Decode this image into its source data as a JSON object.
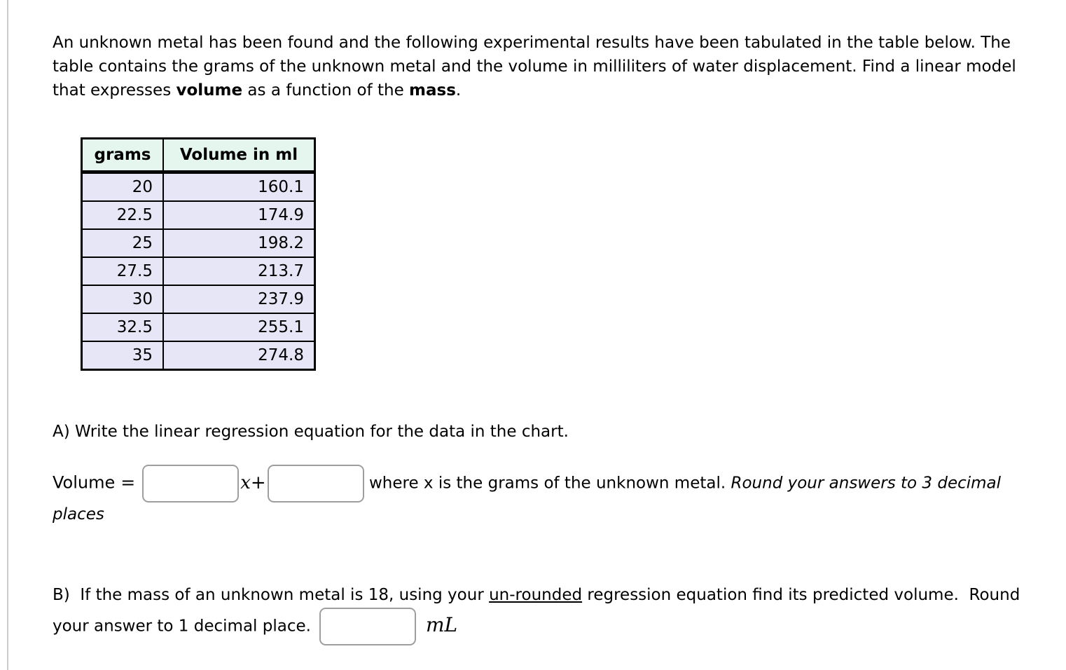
{
  "colors": {
    "table_header_bg": "#e5f6ef",
    "table_row_bg": "#e6e6f6",
    "table_border": "#000000",
    "answer_box_border": "#9e9e9e",
    "left_rule": "#cccccc",
    "text": "#000000"
  },
  "problem": {
    "intro": {
      "part1": "An unknown metal has been found and the following experimental results have been tabulated in the table below. The table contains the grams of the unknown metal and the volume in milliliters of water displacement. Find a linear model that expresses ",
      "bold1": "volume",
      "part2": " as a function of the ",
      "bold2": "mass",
      "part3": "."
    },
    "table": {
      "headers": [
        "grams",
        "Volume in ml"
      ],
      "rows": [
        [
          "20",
          "160.1"
        ],
        [
          "22.5",
          "174.9"
        ],
        [
          "25",
          "198.2"
        ],
        [
          "27.5",
          "213.7"
        ],
        [
          "30",
          "237.9"
        ],
        [
          "32.5",
          "255.1"
        ],
        [
          "35",
          "274.8"
        ]
      ]
    },
    "partA": {
      "prompt": "A) Write the linear regression equation for the data in the chart.",
      "equation_lhs": "Volume",
      "equals_sign": "=",
      "x_plus": "x+",
      "slope_value": "",
      "intercept_value": "",
      "suffix_plain": "where x is the grams of the unknown metal.",
      "suffix_italic": "Round your answers to 3 decimal places"
    },
    "partB": {
      "text_before_underline": "B)  If the mass of an unknown metal is 18, using your ",
      "underlined": "un-rounded",
      "text_after_underline": " regression equation find its predicted volume.  Round your answer to 1 decimal place.",
      "answer_value": "",
      "unit": "mL"
    }
  }
}
